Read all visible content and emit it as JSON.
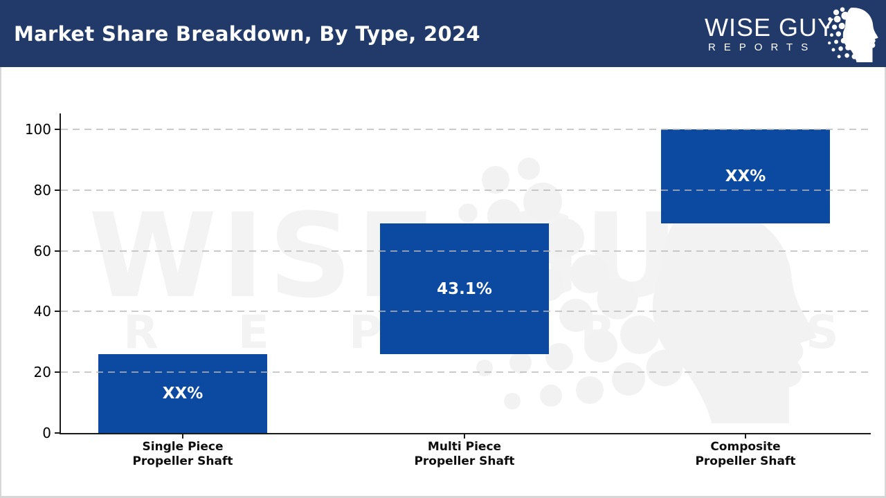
{
  "header": {
    "title": "Market Share Breakdown, By Type, 2024",
    "logo": {
      "name": "WISE GUY",
      "sub": "REPORTS"
    }
  },
  "watermark": {
    "line1": "WISE GUY",
    "line2": "R E P O R T S"
  },
  "chart_data": {
    "type": "bar",
    "subtype": "floating_percentage_segments",
    "title": "Market Share Breakdown, By Type, 2024",
    "categories": [
      "Single Piece Propeller Shaft",
      "Multi Piece Propeller Shaft",
      "Composite Propeller Shaft"
    ],
    "bars": [
      {
        "category_lines": [
          "Single Piece",
          "Propeller Shaft"
        ],
        "from": 0,
        "to": 25.9,
        "label": "XX%"
      },
      {
        "category_lines": [
          "Multi Piece",
          "Propeller Shaft"
        ],
        "from": 25.9,
        "to": 69.0,
        "label": "43.1%"
      },
      {
        "category_lines": [
          "Composite",
          "Propeller Shaft"
        ],
        "from": 69.0,
        "to": 100,
        "label": "XX%"
      }
    ],
    "values_pct": [
      25.9,
      43.1,
      31.0
    ],
    "yticks": [
      0,
      20,
      40,
      60,
      80,
      100
    ],
    "ylim": [
      0,
      100
    ],
    "grid": "dashed-horizontal",
    "legend": "none",
    "bar_color": "#0c4aa1",
    "bar_label_color": "#ffffff"
  },
  "colors": {
    "header_bg": "#213a69",
    "bar_blue": "#0c4aa1",
    "axis": "#1a1a1a",
    "watermark": "#f3f3f3",
    "edge": "#d6d6d6"
  }
}
